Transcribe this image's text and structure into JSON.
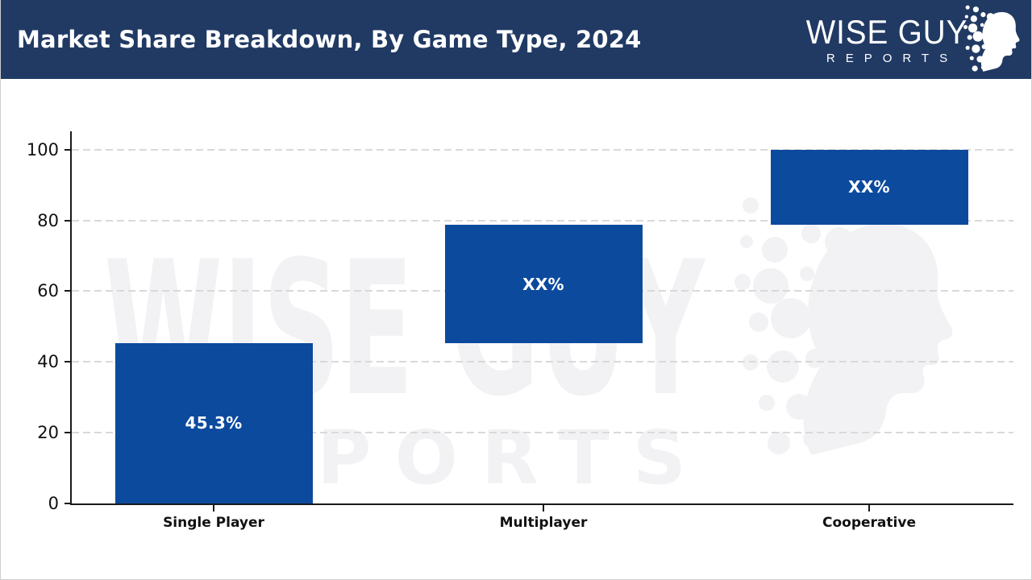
{
  "header": {
    "title": "Market Share Breakdown, By Game Type, 2024",
    "brand": {
      "line1": "WISE GUY",
      "line2": "REPORTS"
    }
  },
  "watermark": {
    "line1": "WISE GUY",
    "line2": "REPORTS"
  },
  "chart_data": {
    "type": "bar",
    "subtype": "waterfall",
    "title": "Market Share Breakdown, By Game Type, 2024",
    "categories": [
      "Single Player",
      "Multiplayer",
      "Cooperative"
    ],
    "bars": [
      {
        "category": "Single Player",
        "start": 0,
        "end": 45.3,
        "value": 45.3,
        "label": "45.3%"
      },
      {
        "category": "Multiplayer",
        "start": 45.3,
        "end": 78.7,
        "value": 33.4,
        "label": "XX%"
      },
      {
        "category": "Cooperative",
        "start": 78.7,
        "end": 100,
        "value": 21.3,
        "label": "XX%"
      }
    ],
    "xlabel": "",
    "ylabel": "",
    "ylim": [
      0,
      105
    ],
    "yticks": [
      0,
      20,
      40,
      60,
      80,
      100
    ],
    "grid": "horizontal-dashed",
    "legend": "none",
    "bar_color": "#0c4a9e",
    "bar_label_color": "#ffffff"
  },
  "colors": {
    "header_bg": "#213a64",
    "bar": "#0c4a9e",
    "gridline": "#d9d9d9",
    "axis": "#1a1a1a",
    "watermark": "#f2f2f4",
    "page_border": "#cfcfcf"
  }
}
